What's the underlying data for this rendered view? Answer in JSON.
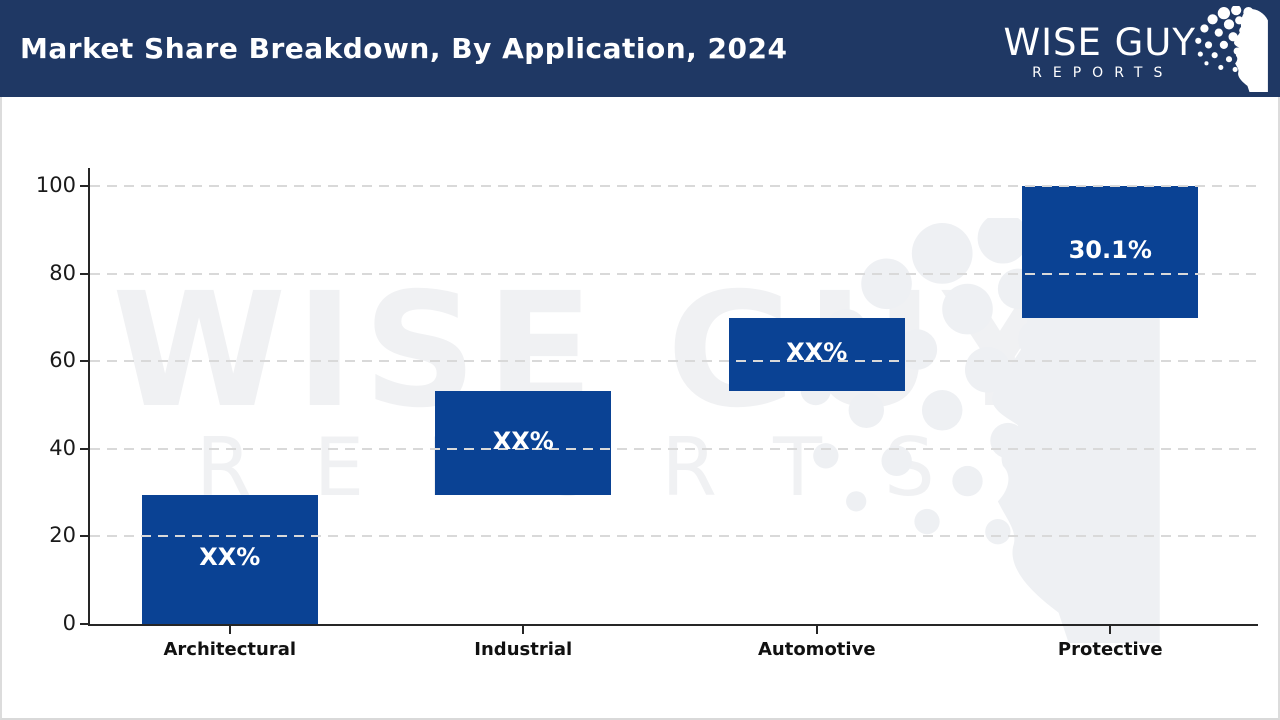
{
  "header": {
    "title": "Market Share Breakdown, By Application, 2024",
    "logo": {
      "line1": "WISE GUY",
      "line2": "REPORTS"
    }
  },
  "watermark": {
    "line1": "WISE GUY",
    "line2": "REPORTS"
  },
  "colors": {
    "header_bg": "#1f3864",
    "bar": "#0a4294",
    "axis": "#262626",
    "gridline": "#d9d9d9",
    "bar_label": "#ffffff",
    "watermark": "#f0f1f3"
  },
  "chart_data": {
    "type": "bar",
    "subtype": "waterfall-floating-bars",
    "title": "Market Share Breakdown, By Application, 2024",
    "xlabel": "",
    "ylabel": "",
    "categories": [
      "Architectural",
      "Industrial",
      "Automotive",
      "Protective"
    ],
    "bars": [
      {
        "category": "Architectural",
        "start": 0,
        "end": 29.5,
        "value": 29.5,
        "label": "XX%"
      },
      {
        "category": "Industrial",
        "start": 29.5,
        "end": 53.2,
        "value": 23.7,
        "label": "XX%"
      },
      {
        "category": "Automotive",
        "start": 53.2,
        "end": 69.9,
        "value": 16.7,
        "label": "XX%"
      },
      {
        "category": "Protective",
        "start": 69.9,
        "end": 100,
        "value": 30.1,
        "label": "30.1%"
      }
    ],
    "ylim": [
      0,
      100
    ],
    "yticks": [
      0,
      20,
      40,
      60,
      80,
      100
    ],
    "grid": {
      "axis": "y",
      "style": "dashed",
      "drawn_over_bars": true
    },
    "legend": "none"
  }
}
